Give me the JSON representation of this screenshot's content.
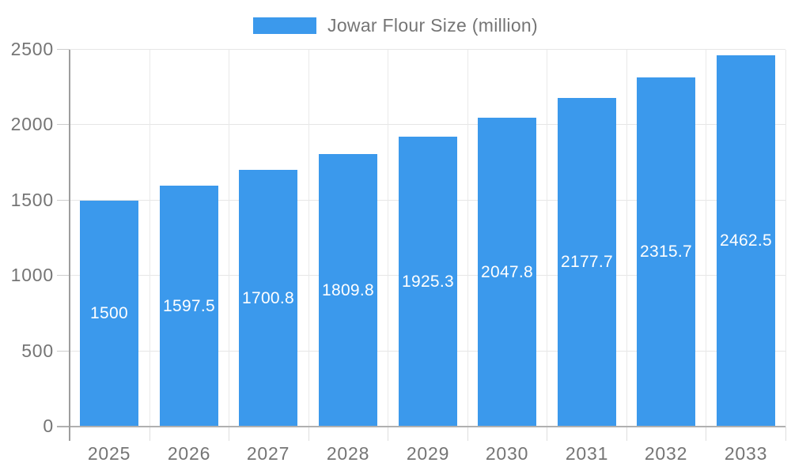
{
  "legend": {
    "label": "Jowar Flour Size (million)"
  },
  "colors": {
    "bar": "#3b99ec",
    "bar_label_text": "#ffffff",
    "axis_text": "#757575",
    "gridline": "#e6e6e6",
    "axis_line": "#b0b0b0",
    "background": "#ffffff"
  },
  "chart_data": {
    "type": "bar",
    "title": "Jowar Flour Size (million)",
    "categories": [
      "2025",
      "2026",
      "2027",
      "2028",
      "2029",
      "2030",
      "2031",
      "2032",
      "2033"
    ],
    "series": [
      {
        "name": "Jowar Flour Size (million)",
        "values": [
          1500,
          1597.5,
          1700.8,
          1809.8,
          1925.3,
          2047.8,
          2177.7,
          2315.7,
          2462.5
        ]
      }
    ],
    "value_labels": [
      "1500",
      "1597.5",
      "1700.8",
      "1809.8",
      "1925.3",
      "2047.8",
      "2177.7",
      "2315.7",
      "2462.5"
    ],
    "xlabel": "",
    "ylabel": "",
    "ylim": [
      0,
      2500
    ],
    "yticks": [
      0,
      500,
      1000,
      1500,
      2000,
      2500
    ],
    "grid": true,
    "legend_position": "top",
    "value_label_position": "inside-center"
  }
}
